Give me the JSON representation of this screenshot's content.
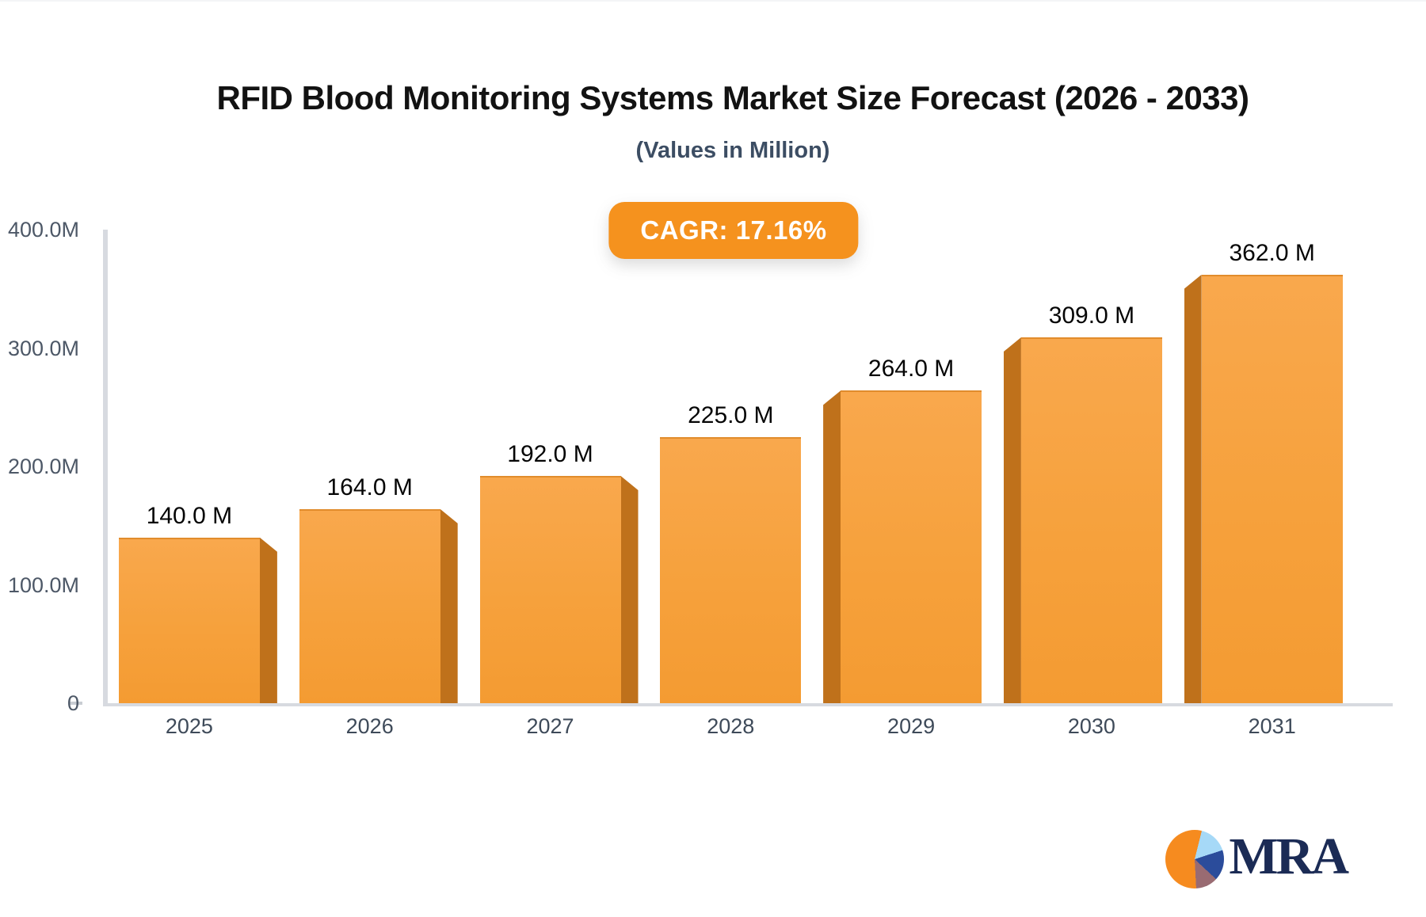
{
  "header": {
    "title": "RFID Blood Monitoring Systems Market Size Forecast (2026 - 2033)",
    "subtitle": "(Values in Million)",
    "cagr_badge": "CAGR: 17.16%"
  },
  "chart_data": {
    "type": "bar",
    "title": "RFID Blood Monitoring Systems Market Size Forecast (2026 - 2033)",
    "subtitle": "(Values in Million)",
    "unit": "Million",
    "cagr": "17.16%",
    "categories": [
      "2025",
      "2026",
      "2027",
      "2028",
      "2029",
      "2030",
      "2031"
    ],
    "values": [
      140,
      164,
      192,
      225,
      264,
      309,
      362
    ],
    "value_labels": [
      "140.0 M",
      "164.0 M",
      "192.0 M",
      "225.0 M",
      "264.0 M",
      "309.0 M",
      "362.0 M"
    ],
    "yticks": [
      {
        "label": "400.0M",
        "value": 400
      },
      {
        "label": "300.0M",
        "value": 300
      },
      {
        "label": "200.0M",
        "value": 200
      },
      {
        "label": "100.0M",
        "value": 100
      },
      {
        "label": "0",
        "value": 0
      }
    ],
    "ylim": [
      0,
      400
    ],
    "grid": false,
    "legend": false,
    "bar_style": "3d-perspective-center",
    "colors": {
      "bar_face_top": "#f9a84d",
      "bar_face_bottom": "#f49b32",
      "bar_side": "#bf711b",
      "badge_background": "#f5921e",
      "axis_line": "#d7dae0",
      "ytick_text": "#4d5867",
      "xtick_text": "#3e4a59",
      "value_label_text": "#050505",
      "subtitle_text": "#3c4d63",
      "logo_navy": "#1b2b55",
      "logo_orange": "#f68b1f",
      "logo_light_blue": "#a6d9f7",
      "logo_dark_blue": "#2b4c9b",
      "logo_mauve": "#996b72"
    }
  },
  "branding": {
    "logo_text": "MRA"
  }
}
